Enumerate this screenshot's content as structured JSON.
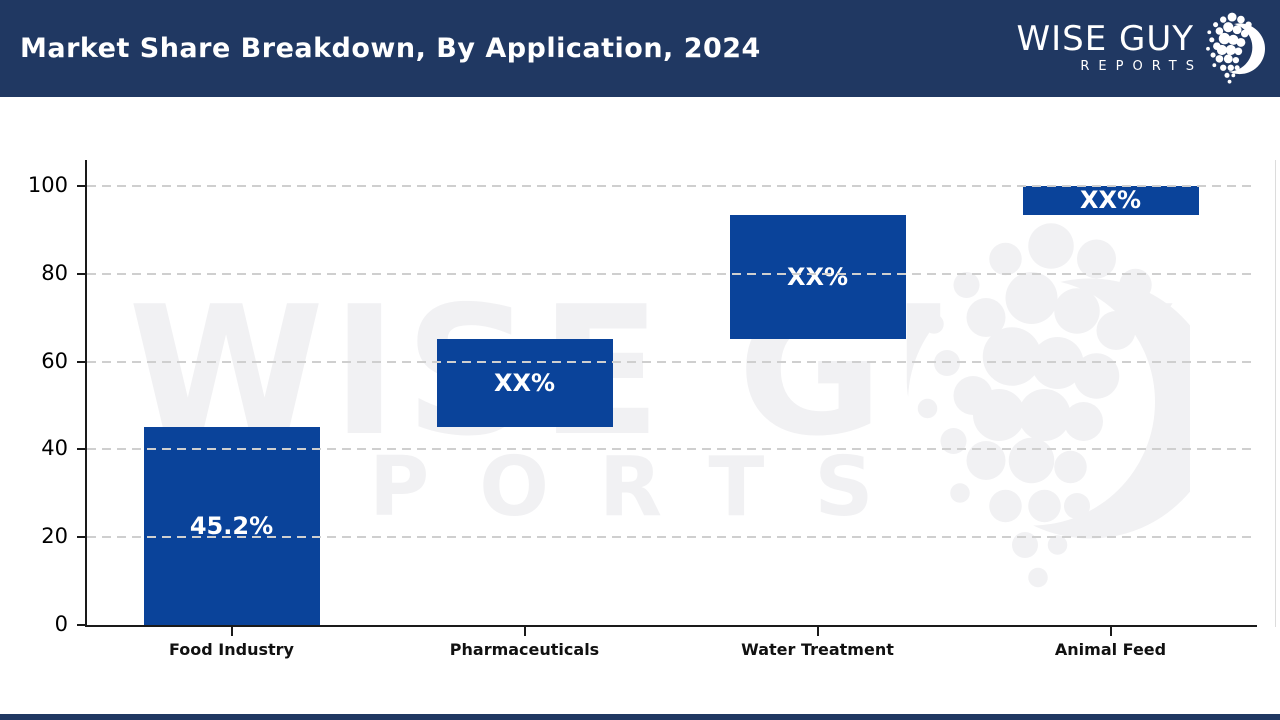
{
  "header": {
    "title": "Market Share Breakdown, By Application, 2024",
    "logo": {
      "line1": "WISE GUY",
      "line2": "REPORTS"
    }
  },
  "watermark": {
    "line1": "WISE GUY",
    "line2": "REPORTS"
  },
  "colors": {
    "header_bg": "#203862",
    "footer_bg": "#203862",
    "bar": "#0a439a",
    "bar_label": "#ffffff",
    "watermark": "#f1f1f3",
    "gridline": "#cfcfcf",
    "axis": "#1a1a1a",
    "logo_fill": "#ffffff"
  },
  "chart_data": {
    "type": "bar",
    "subtype": "waterfall",
    "title": "Market Share Breakdown, By Application, 2024",
    "categories": [
      "Food Industry",
      "Pharmaceuticals",
      "Water Treatment",
      "Animal Feed"
    ],
    "bars": [
      {
        "category": "Food Industry",
        "start": 0,
        "end": 45.2,
        "label": "45.2%"
      },
      {
        "category": "Pharmaceuticals",
        "start": 45.2,
        "end": 65.2,
        "label": "XX%"
      },
      {
        "category": "Water Treatment",
        "start": 65.2,
        "end": 93.5,
        "label": "XX%"
      },
      {
        "category": "Animal Feed",
        "start": 93.5,
        "end": 100,
        "label": "XX%"
      }
    ],
    "yticks": [
      0,
      20,
      40,
      60,
      80,
      100
    ],
    "ylim": [
      0,
      106
    ],
    "xlabel": "",
    "ylabel": "",
    "grid": "horizontal-dashed",
    "legend": "none",
    "bar_color": "#0a439a"
  }
}
